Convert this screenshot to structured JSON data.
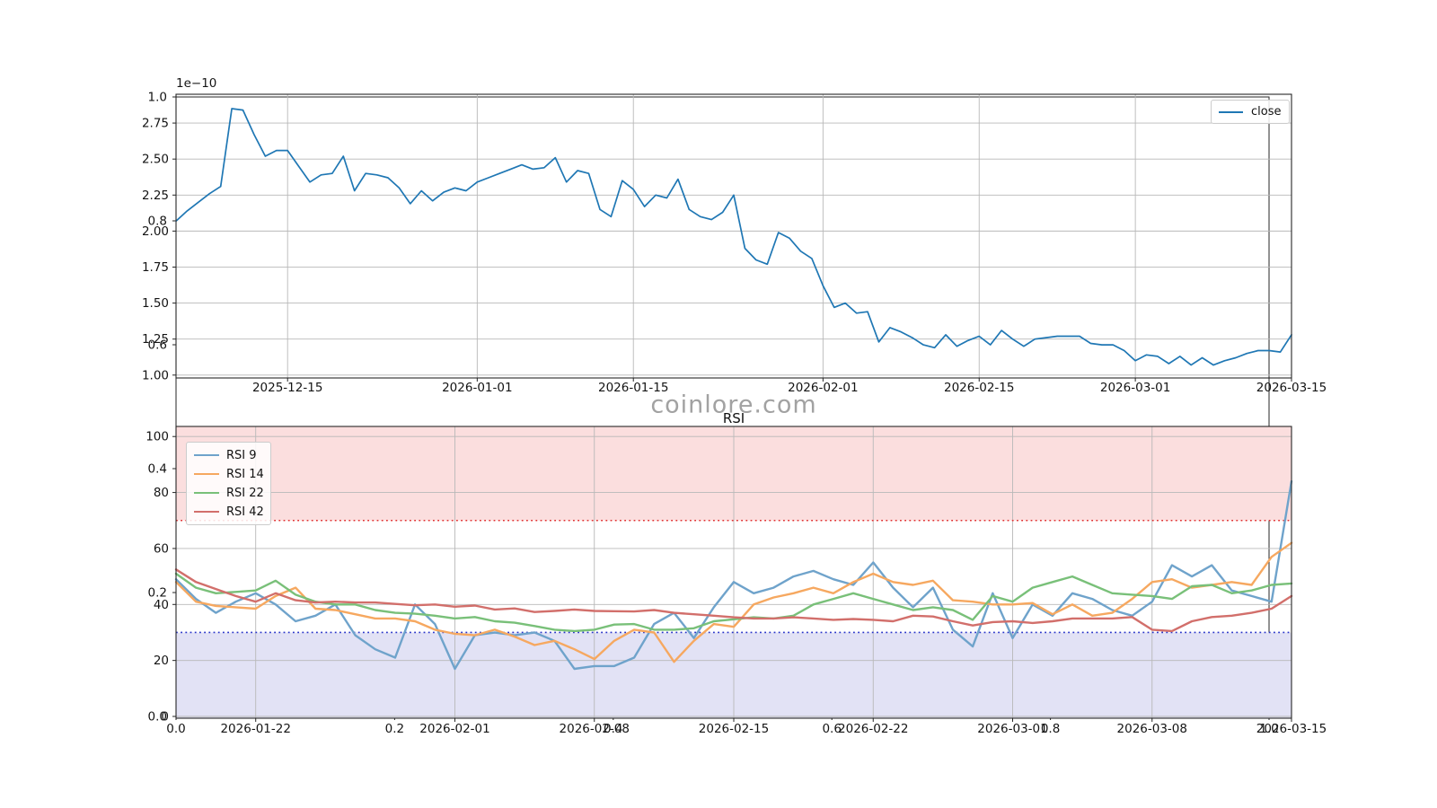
{
  "watermark": {
    "text": "coinlore.com",
    "color": "#a2a2a2"
  },
  "base_axes": {
    "x_ticks": [
      "0.0",
      "0.2",
      "0.4",
      "0.6",
      "0.8",
      "1.0"
    ],
    "y_ticks": [
      "1.0",
      "0.8",
      "0.6",
      "0.4",
      "0.2",
      "0.0"
    ]
  },
  "chart_data": [
    {
      "type": "line",
      "title": "",
      "legend_label": "close",
      "legend_position": "upper right",
      "offset_label": "1e−10",
      "x_start": "2025-12-05",
      "x_end": "2026-03-15",
      "grid": true,
      "ylim": [
        0.98,
        2.95
      ],
      "x_ticks": [
        {
          "label": "2025-12-15",
          "pos": 10
        },
        {
          "label": "2026-01-01",
          "pos": 27
        },
        {
          "label": "2026-01-15",
          "pos": 41
        },
        {
          "label": "2026-02-01",
          "pos": 58
        },
        {
          "label": "2026-02-15",
          "pos": 72
        },
        {
          "label": "2026-03-01",
          "pos": 86
        },
        {
          "label": "2026-03-15",
          "pos": 100
        }
      ],
      "y_ticks": [
        {
          "label": "2.75",
          "v": 2.75
        },
        {
          "label": "2.50",
          "v": 2.5
        },
        {
          "label": "2.25",
          "v": 2.25
        },
        {
          "label": "2.00",
          "v": 2.0
        },
        {
          "label": "1.75",
          "v": 1.75
        },
        {
          "label": "1.50",
          "v": 1.5
        },
        {
          "label": "1.25",
          "v": 1.25
        },
        {
          "label": "1.00",
          "v": 1.0
        }
      ],
      "series": [
        {
          "name": "close",
          "color": "#1f77b4",
          "width": 1.7,
          "values": [
            2.07,
            2.14,
            2.2,
            2.26,
            2.31,
            2.85,
            2.84,
            2.67,
            2.52,
            2.56,
            2.56,
            2.45,
            2.34,
            2.39,
            2.4,
            2.52,
            2.28,
            2.4,
            2.39,
            2.37,
            2.3,
            2.19,
            2.28,
            2.21,
            2.27,
            2.3,
            2.28,
            2.34,
            2.37,
            2.4,
            2.43,
            2.46,
            2.43,
            2.44,
            2.51,
            2.34,
            2.42,
            2.4,
            2.15,
            2.1,
            2.35,
            2.29,
            2.17,
            2.25,
            2.23,
            2.36,
            2.15,
            2.1,
            2.08,
            2.13,
            2.25,
            1.88,
            1.8,
            1.77,
            1.99,
            1.95,
            1.86,
            1.81,
            1.62,
            1.47,
            1.5,
            1.43,
            1.44,
            1.23,
            1.33,
            1.3,
            1.26,
            1.21,
            1.19,
            1.28,
            1.2,
            1.24,
            1.27,
            1.21,
            1.31,
            1.25,
            1.2,
            1.25,
            1.26,
            1.27,
            1.27,
            1.27,
            1.22,
            1.21,
            1.21,
            1.17,
            1.1,
            1.14,
            1.13,
            1.08,
            1.13,
            1.07,
            1.12,
            1.07,
            1.1,
            1.12,
            1.15,
            1.17,
            1.17,
            1.16,
            1.28
          ]
        }
      ]
    },
    {
      "type": "line",
      "title": "RSI",
      "legend_position": "upper left",
      "x_start": "2026-01-18",
      "x_end": "2026-03-15",
      "grid": true,
      "ylim": [
        -0.64,
        103.6
      ],
      "bands": [
        {
          "from": 70,
          "to": 103.6,
          "color": "#fbdede",
          "name": "overbought-zone"
        },
        {
          "from": -0.64,
          "to": 30,
          "color": "#e2e2f5",
          "name": "oversold-zone"
        }
      ],
      "hlines": [
        {
          "v": 70,
          "color": "#e03131",
          "style": "dotted",
          "name": "overbought-threshold"
        },
        {
          "v": 30,
          "color": "#2733c9",
          "style": "dotted",
          "name": "oversold-threshold"
        }
      ],
      "x_ticks": [
        {
          "label": "2026-01-22",
          "pos": 4
        },
        {
          "label": "2026-02-01",
          "pos": 14
        },
        {
          "label": "2026-02-08",
          "pos": 21
        },
        {
          "label": "2026-02-15",
          "pos": 28
        },
        {
          "label": "2026-02-22",
          "pos": 35
        },
        {
          "label": "2026-03-01",
          "pos": 42
        },
        {
          "label": "2026-03-08",
          "pos": 49
        },
        {
          "label": "2026-03-15",
          "pos": 56
        }
      ],
      "y_ticks": [
        {
          "label": "100",
          "v": 100
        },
        {
          "label": "80",
          "v": 80
        },
        {
          "label": "60",
          "v": 60
        },
        {
          "label": "40",
          "v": 40
        },
        {
          "label": "20",
          "v": 20
        },
        {
          "label": "0",
          "v": 0
        }
      ],
      "series": [
        {
          "name": "RSI 9",
          "color": "#6fa3cb",
          "width": 2.4,
          "values": [
            49,
            42,
            37,
            41,
            44,
            40,
            34,
            36,
            40,
            29,
            24,
            21,
            40,
            33,
            17,
            29,
            30,
            29,
            30,
            27,
            17,
            18,
            18,
            21,
            33,
            37,
            28,
            39,
            48,
            44,
            46,
            50,
            52,
            49,
            47,
            55,
            46,
            39,
            46,
            31,
            25,
            44,
            28,
            40,
            36,
            44,
            42,
            38,
            36,
            41,
            54,
            50,
            54,
            45,
            43,
            41,
            84
          ]
        },
        {
          "name": "RSI 14",
          "color": "#f6a860",
          "width": 2.4,
          "values": [
            48,
            41,
            39.5,
            39,
            38.5,
            43,
            46,
            38.5,
            38,
            36.5,
            35,
            35,
            34,
            31,
            29.5,
            29,
            31,
            28.5,
            25.5,
            27,
            24,
            20.5,
            27,
            31,
            30,
            19.5,
            27,
            33,
            32,
            40,
            42.5,
            44,
            46,
            44,
            48,
            51,
            48,
            47,
            48.5,
            41.5,
            41,
            40,
            40,
            40.5,
            36.5,
            40,
            36,
            37,
            42,
            48,
            49,
            46,
            47,
            48,
            47,
            57,
            62
          ]
        },
        {
          "name": "RSI 22",
          "color": "#79c079",
          "width": 2.4,
          "values": [
            51,
            46,
            44,
            44.5,
            45,
            48.5,
            43.5,
            41,
            40,
            40,
            38,
            37,
            36.7,
            36,
            35,
            35.5,
            34,
            33.5,
            32.3,
            31,
            30.5,
            31,
            32.8,
            33,
            31,
            31,
            31.5,
            34,
            34.7,
            35.4,
            35,
            36,
            40,
            42,
            44,
            42,
            40,
            38,
            39,
            38,
            34.5,
            43,
            41,
            46,
            48,
            50,
            47,
            44,
            43.5,
            43,
            42,
            46.5,
            47,
            44,
            45,
            47,
            47.5
          ]
        },
        {
          "name": "RSI 42",
          "color": "#d26f6b",
          "width": 2.4,
          "values": [
            52.5,
            48,
            45.5,
            43,
            41,
            44,
            41.5,
            40.7,
            41,
            40.7,
            40.7,
            40.2,
            39.7,
            40,
            39.2,
            39.6,
            38.2,
            38.6,
            37.3,
            37.7,
            38.2,
            37.7,
            37.6,
            37.5,
            38,
            37,
            36.5,
            36,
            35.4,
            35,
            35,
            35.4,
            35,
            34.5,
            34.8,
            34.5,
            34,
            36,
            35.7,
            34,
            32.5,
            33.7,
            34,
            33.4,
            34,
            35,
            35,
            35,
            35.5,
            31,
            30.5,
            34,
            35.5,
            36,
            37,
            38.5,
            43
          ]
        }
      ]
    }
  ]
}
